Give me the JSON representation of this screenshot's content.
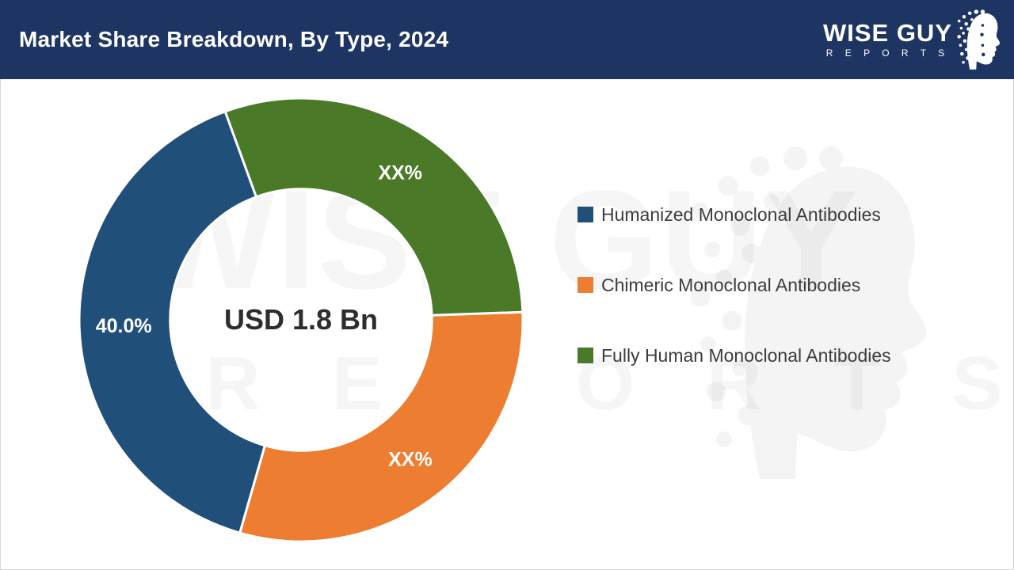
{
  "header": {
    "title": "Market Share Breakdown, By Type, 2024",
    "logo": {
      "name": "WISE GUY",
      "subtitle": "R E P O R T S"
    }
  },
  "watermark": {
    "line1": "WISE GUY",
    "line2": "R E P O R T S"
  },
  "chart_data": {
    "type": "pie",
    "subtype": "donut",
    "title": "Market Share Breakdown, By Type, 2024",
    "center_label": "USD 1.8 Bn",
    "start_angle_deg": 110,
    "direction": "counterclockwise",
    "inner_radius_ratio": 0.59,
    "legend_position": "right",
    "series": [
      {
        "name": "Humanized Monoclonal Antibodies",
        "value": 40.0,
        "display_label": "40.0%",
        "color": "#204F7A"
      },
      {
        "name": "Chimeric Monoclonal Antibodies",
        "value": 30.0,
        "display_label": "XX%",
        "color": "#ED7D31"
      },
      {
        "name": "Fully Human Monoclonal Antibodies",
        "value": 30.0,
        "display_label": "XX%",
        "color": "#4A7A28"
      }
    ]
  },
  "theme": {
    "header_bg": "#1E3563",
    "header_text": "#FFFFFF",
    "slice_gap_color": "#FFFFFF",
    "center_label_color": "#2D2D2D",
    "legend_text_color": "#3C3C3C",
    "slice_label_color": "#FFFFFF"
  }
}
